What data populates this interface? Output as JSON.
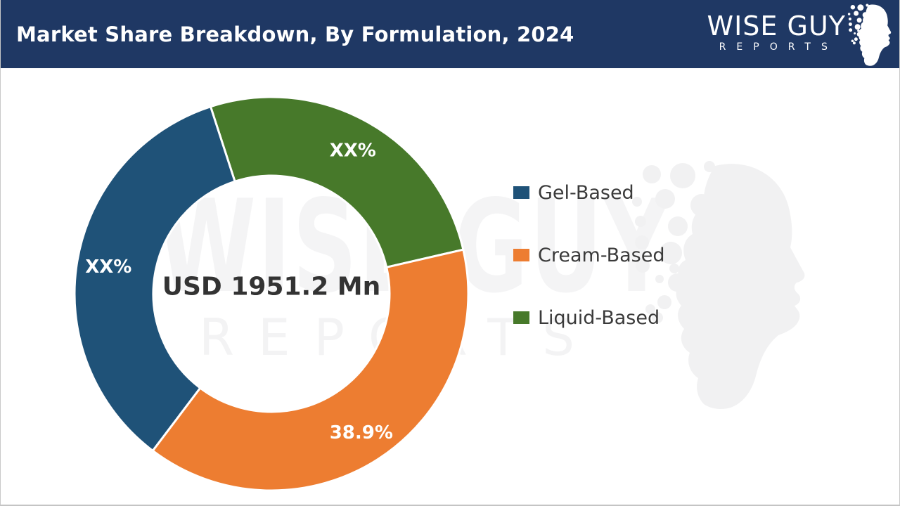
{
  "header": {
    "title": "Market Share Breakdown, By Formulation, 2024",
    "logo": {
      "wordmark": "WISE GUY",
      "subtext": "REPORTS"
    }
  },
  "watermark": {
    "wordmark": "WISE GUY",
    "subtext": "REPORTS"
  },
  "chart_data": {
    "type": "donut",
    "title": "Market Share Breakdown, By Formulation, 2024",
    "center_label": "USD 1951.2 Mn",
    "legend_position": "right",
    "start_angle_deg": -18,
    "inner_radius_ratio": 0.6,
    "segments": [
      {
        "name": "Gel-Based",
        "value": 34.7,
        "label": "XX%",
        "color": "#1f5278"
      },
      {
        "name": "Cream-Based",
        "value": 38.9,
        "label": "38.9%",
        "color": "#ed7d31"
      },
      {
        "name": "Liquid-Based",
        "value": 26.4,
        "label": "XX%",
        "color": "#47792a"
      }
    ],
    "draw_order": [
      2,
      1,
      0
    ]
  },
  "colors": {
    "header_bg": "#1f3864",
    "page_bg": "#ffffff",
    "center_text": "#333333",
    "legend_text": "#3a3a3a",
    "percent_label": "#ffffff",
    "watermark": "#f3f3f4",
    "border": "#c8c8c8"
  }
}
